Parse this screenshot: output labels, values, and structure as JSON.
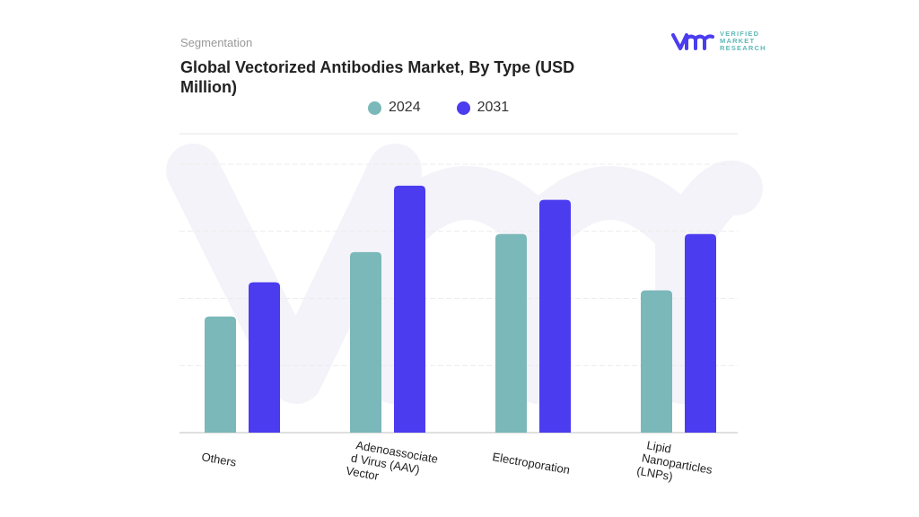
{
  "header": {
    "segment_label": "Segmentation",
    "title": "Global Vectorized Antibodies Market, By Type (USD Million)",
    "logo_text": [
      "VERIFIED",
      "MARKET",
      "RESEARCH"
    ]
  },
  "chart_data": {
    "type": "bar",
    "title": "Global Vectorized Antibodies Market, By Type (USD Million)",
    "categories": [
      "Others",
      "Adenoassociated Virus (AAV) Vector",
      "Electroporation",
      "Lipid Nanoparticles (LNPs)"
    ],
    "category_label_lines": [
      [
        "Others"
      ],
      [
        "Adenoassociate",
        "d Virus (AAV)",
        "Vector"
      ],
      [
        "Electroporation"
      ],
      [
        "Lipid",
        "Nanoparticles",
        "(LNPs)"
      ]
    ],
    "series": [
      {
        "name": "2024",
        "color": "#7ab8b9",
        "values": [
          1.73,
          2.69,
          2.96,
          2.12
        ]
      },
      {
        "name": "2031",
        "color": "#4b3cf0",
        "values": [
          2.24,
          3.68,
          3.47,
          2.96
        ]
      }
    ],
    "ylim": [
      0,
      4
    ],
    "y_tick_labels_shown": false,
    "grid": true,
    "legend_position": "top-center",
    "xlabel": "",
    "ylabel": ""
  }
}
